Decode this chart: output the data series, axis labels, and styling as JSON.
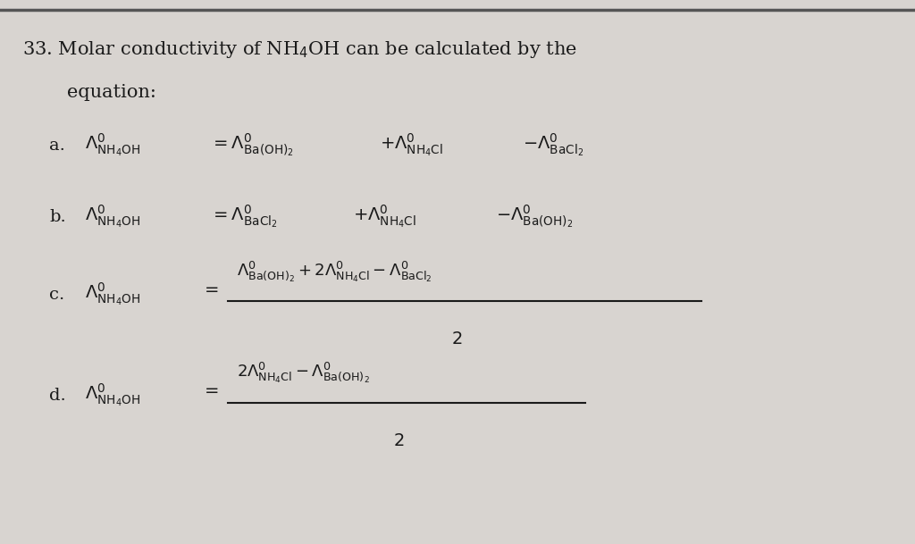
{
  "background_color": "#d8d4d0",
  "text_color": "#1a1a1a",
  "title_line1": "33. Molar conductivity of NH",
  "title_sub": "4",
  "title_line1b": "OH can be calculated by the",
  "title_line2": "equation:",
  "fig_width": 10.24,
  "fig_height": 6.09
}
